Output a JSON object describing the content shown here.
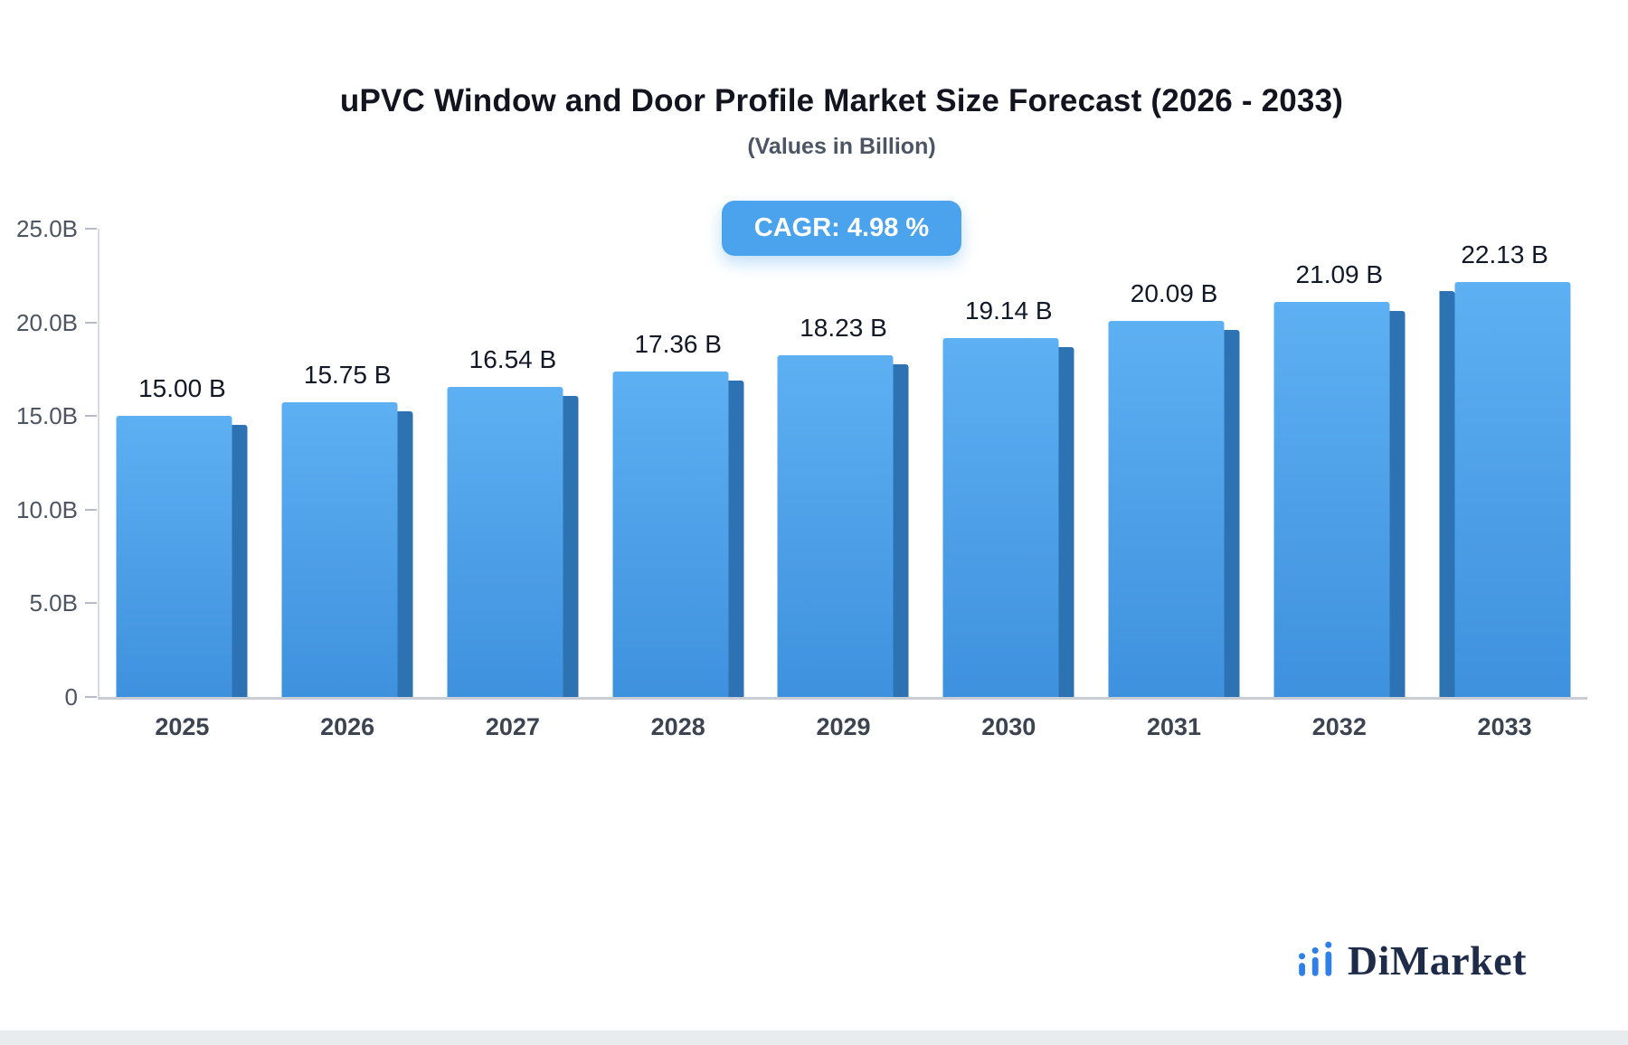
{
  "title": "uPVC Window and Door Profile Market Size Forecast (2026 - 2033)",
  "subtitle": "(Values in Billion)",
  "cagr_label": "CAGR: 4.98 %",
  "brand": {
    "name": "DiMarket"
  },
  "colors": {
    "bar_top": "#5db0f2",
    "bar_bottom": "#3e91dd",
    "bar_side": "#2d73b4",
    "badge_bg": "#4aa3ec",
    "badge_text": "#ffffff",
    "brand_blue": "#2e7fe8",
    "brand_navy": "#1e2c49",
    "axis_line": "#c9ced6",
    "label_dark": "#111827",
    "label_gray": "#4b5563"
  },
  "chart_data": {
    "type": "bar",
    "title": "uPVC Window and Door Profile Market Size Forecast (2026 - 2033)",
    "subtitle": "(Values in Billion)",
    "xlabel": "",
    "ylabel": "",
    "ylim": [
      0,
      25
    ],
    "grid": false,
    "legend": false,
    "categories": [
      "2025",
      "2026",
      "2027",
      "2028",
      "2029",
      "2030",
      "2031",
      "2032",
      "2033"
    ],
    "values": [
      15.0,
      15.75,
      16.54,
      17.36,
      18.23,
      19.14,
      20.09,
      21.09,
      22.13
    ],
    "value_labels": [
      "15.00 B",
      "15.75 B",
      "16.54 B",
      "17.36 B",
      "18.23 B",
      "19.14 B",
      "20.09 B",
      "21.09 B",
      "22.13 B"
    ],
    "yticks": [
      {
        "label": "25.0B",
        "value": 25
      },
      {
        "label": "20.0B",
        "value": 20
      },
      {
        "label": "15.0B",
        "value": 15
      },
      {
        "label": "10.0B",
        "value": 10
      },
      {
        "label": "5.0B",
        "value": 5
      },
      {
        "label": "0",
        "value": 0
      }
    ],
    "annotations": [
      "CAGR: 4.98 %"
    ]
  }
}
